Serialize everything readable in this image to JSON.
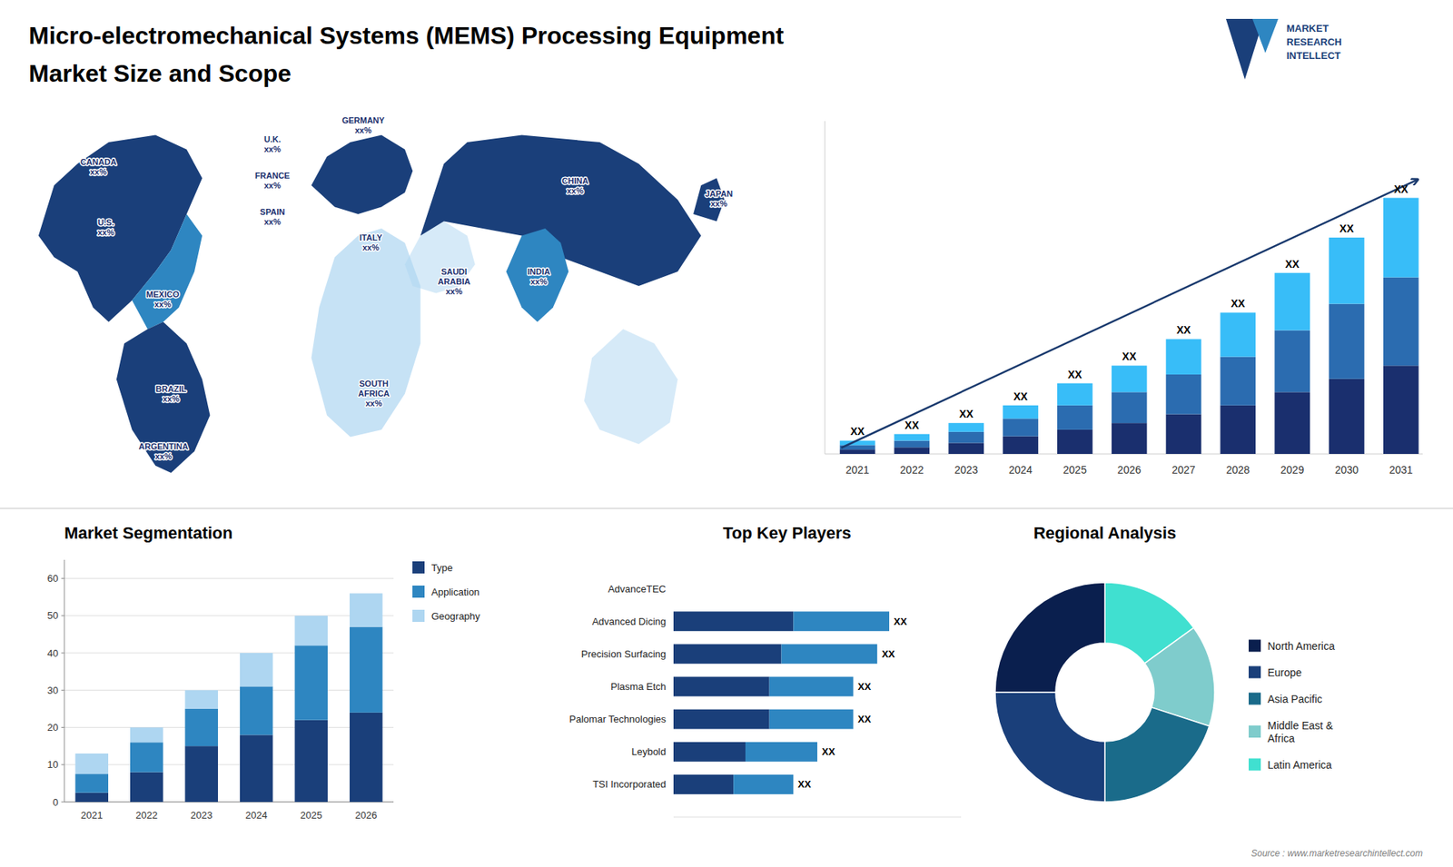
{
  "chart_data": [
    {
      "type": "map",
      "title": "Micro-electromechanical Systems (MEMS) Processing Equipment",
      "subtitle": "Market Size and Scope",
      "annotations": [
        "U.S.\nxx%",
        "CANADA\nxx%",
        "MEXICO\nxx%",
        "BRAZIL\nxx%",
        "ARGENTINA\nxx%",
        "U.K.\nxx%",
        "FRANCE\nxx%",
        "SPAIN\nxx%",
        "GERMANY\nxx%",
        "ITALY\nxx%",
        "SAUDI\nARABIA\nxx%",
        "SOUTH\nAFRICA\nxx%",
        "CHINA\nxx%",
        "INDIA\nxx%",
        "JAPAN\nxx%",
        "MARKET\nRESEARCH\nINTELLECT",
        "Source : www.marketresearchintellect.com"
      ]
    },
    {
      "type": "bar",
      "stacked": true,
      "categories": [
        "2021",
        "2022",
        "2023",
        "2024",
        "2025",
        "2026",
        "2027",
        "2028",
        "2029",
        "2030",
        "2031"
      ],
      "series": [
        {
          "color": "#1a2f6e",
          "values": [
            1,
            1.5,
            2.5,
            4,
            5.5,
            7,
            9,
            11,
            14,
            17,
            20
          ]
        },
        {
          "color": "#2b6cb0",
          "values": [
            1,
            1.5,
            2.5,
            4,
            5.5,
            7,
            9,
            11,
            14,
            17,
            20
          ]
        },
        {
          "color": "#38bdf8",
          "values": [
            1,
            1.5,
            2,
            3,
            5,
            6,
            8,
            10,
            13,
            15,
            18
          ]
        }
      ],
      "ylim": [
        0,
        75.4
      ],
      "yticks": [],
      "tick_labels": "x",
      "annotations": [
        "XX",
        "XX",
        "XX",
        "XX",
        "XX",
        "XX",
        "XX",
        "XX",
        "XX",
        "XX",
        "XX"
      ]
    },
    {
      "type": "bar",
      "stacked": true,
      "title": "Market Segmentation",
      "categories": [
        "2021",
        "2022",
        "2023",
        "2024",
        "2025",
        "2026"
      ],
      "series": [
        {
          "name": "Type",
          "color": "#1a3f7a",
          "values": [
            2.5,
            8,
            15,
            18,
            22,
            24
          ]
        },
        {
          "name": "Application",
          "color": "#2e86c1",
          "values": [
            5,
            8,
            10,
            13,
            20,
            23
          ]
        },
        {
          "name": "Geography",
          "color": "#aed6f1",
          "values": [
            5.5,
            4,
            5,
            9,
            8,
            9
          ]
        }
      ],
      "ylim": [
        0,
        65
      ],
      "yticks": [
        0,
        10,
        20,
        30,
        40,
        50,
        60
      ],
      "grid": true,
      "legend": "right"
    },
    {
      "type": "bar",
      "orientation": "horizontal",
      "stacked": true,
      "title": "Top Key Players",
      "categories": [
        "AdvanceTEC",
        "Advanced Dicing",
        "Precision Surfacing",
        "Plasma Etch",
        "Palomar Technologies",
        "Leybold",
        "TSI Incorporated"
      ],
      "series": [
        {
          "color": "#1a3f7a",
          "values": [
            0,
            5,
            4.5,
            4,
            4,
            3,
            2.5
          ]
        },
        {
          "color": "#2e86c1",
          "values": [
            0,
            4,
            4,
            3.5,
            3.5,
            3,
            2.5
          ]
        }
      ],
      "xlim": [
        0,
        12
      ],
      "xticks": [],
      "tick_labels": "y",
      "annotations": [
        null,
        "XX",
        "XX",
        "XX",
        "XX",
        "XX",
        "XX"
      ]
    },
    {
      "type": "pie",
      "title": "Regional Analysis",
      "categories": [
        "Latin America",
        "Middle East &\nAfrica",
        "Asia Pacific",
        "Europe",
        "North America"
      ],
      "values": [
        15,
        15,
        20,
        25,
        25
      ],
      "colors": [
        "#40e0d0",
        "#7fcccc",
        "#1a6b8a",
        "#1a3f7a",
        "#0a1f4e"
      ],
      "legend": "right"
    }
  ]
}
